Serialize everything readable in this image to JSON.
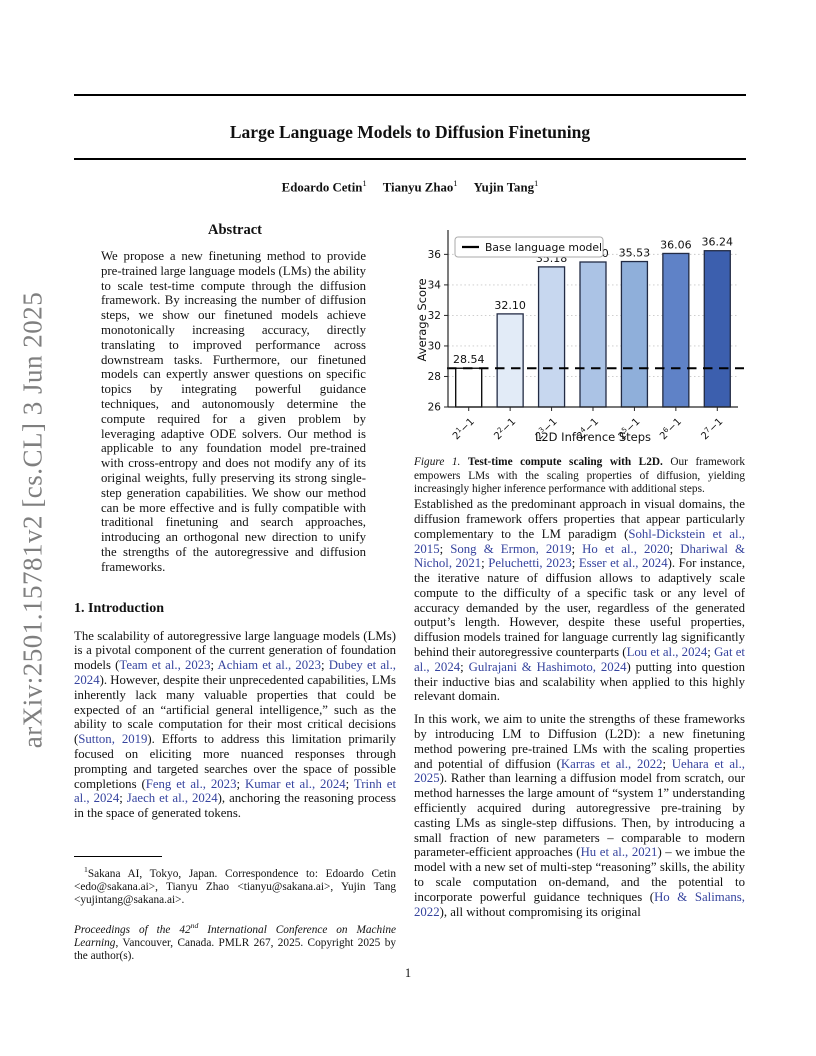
{
  "colors": {
    "citation": "#35439e",
    "watermark": "#7f7f7f",
    "accent_bar_dark": "#3c5fae"
  },
  "arxiv_watermark": "arXiv:2501.15781v2  [cs.CL]  3 Jun 2025",
  "header": {
    "title": "Large Language Models to Diffusion Finetuning"
  },
  "authors_line": {
    "segments": [
      {
        "t": "author",
        "s": "Edoardo Cetin"
      },
      {
        "t": "sup",
        "s": "1"
      },
      {
        "t": "gap"
      },
      {
        "t": "author",
        "s": "Tianyu Zhao"
      },
      {
        "t": "sup",
        "s": "1"
      },
      {
        "t": "gap"
      },
      {
        "t": "author",
        "s": "Yujin Tang"
      },
      {
        "t": "sup",
        "s": "1"
      }
    ]
  },
  "abstract": {
    "heading": "Abstract",
    "text": "We propose a new finetuning method to provide pre-trained large language models (LMs) the ability to scale test-time compute through the diffusion framework. By increasing the number of diffusion steps, we show our finetuned models achieve monotonically increasing accuracy, directly translating to improved performance across downstream tasks. Furthermore, our finetuned models can expertly answer questions on specific topics by integrating powerful guidance techniques, and autonomously determine the compute required for a given problem by leveraging adaptive ODE solvers. Our method is applicable to any foundation model pre-trained with cross-entropy and does not modify any of its original weights, fully preserving its strong single-step generation capabilities. We show our method can be more effective and is fully compatible with traditional finetuning and search approaches, introducing an orthogonal new direction to unify the strengths of the autoregressive and diffusion frameworks."
  },
  "sections": {
    "introduction": {
      "heading": "1. Introduction",
      "paragraphs": [
        {
          "segments": [
            {
              "t": "text",
              "s": "The scalability of autoregressive large language models (LMs) is a pivotal component of the current generation of foundation models ("
            },
            {
              "t": "cite",
              "s": "Team et al., 2023"
            },
            {
              "t": "text",
              "s": "; "
            },
            {
              "t": "cite",
              "s": "Achiam et al., 2023"
            },
            {
              "t": "text",
              "s": "; "
            },
            {
              "t": "cite",
              "s": "Dubey et al., 2024"
            },
            {
              "t": "text",
              "s": "). However, despite their unprecedented capabilities, LMs inherently lack many valuable properties that could be expected of an “artificial general intelligence,” such as the ability to scale computation for their most critical decisions ("
            },
            {
              "t": "cite",
              "s": "Sutton, 2019"
            },
            {
              "t": "text",
              "s": "). Efforts to address this limitation primarily focused on eliciting more nuanced responses through prompting and targeted searches over the space of possible completions ("
            },
            {
              "t": "cite",
              "s": "Feng et al., 2023"
            },
            {
              "t": "text",
              "s": "; "
            },
            {
              "t": "cite",
              "s": "Kumar et al., 2024"
            },
            {
              "t": "text",
              "s": "; "
            },
            {
              "t": "cite",
              "s": "Trinh et al., 2024"
            },
            {
              "t": "text",
              "s": "; "
            },
            {
              "t": "cite",
              "s": "Jaech et al., 2024"
            },
            {
              "t": "text",
              "s": "), anchoring the reasoning process in the space of generated tokens."
            }
          ]
        }
      ]
    }
  },
  "figure": {
    "caption": {
      "segments": [
        {
          "t": "i",
          "s": "Figure 1."
        },
        {
          "t": "text",
          "s": " "
        },
        {
          "t": "b",
          "s": "Test-time compute scaling with L2D."
        },
        {
          "t": "text",
          "s": " Our framework empowers LMs with the scaling properties of diffusion, yielding increasingly higher inference performance with additional steps."
        }
      ]
    }
  },
  "chart_data": {
    "type": "bar",
    "title": "",
    "xlabel": "L2D Inference Steps",
    "ylabel": "Average Score",
    "categories_text": [
      "2¹−1",
      "2²−1",
      "2³−1",
      "2⁴−1",
      "2⁵−1",
      "2⁶−1",
      "2⁷−1"
    ],
    "category_base": "2",
    "category_exponents": [
      "1",
      "2",
      "3",
      "4",
      "5",
      "6",
      "7"
    ],
    "category_suffix": "−1",
    "values": [
      28.54,
      32.1,
      35.18,
      35.5,
      35.53,
      36.06,
      36.24
    ],
    "bar_labels": [
      "28.54",
      "32.10",
      "35.18",
      "35.50",
      "35.53",
      "36.06",
      "36.24"
    ],
    "ylim": [
      26,
      37.4
    ],
    "yticks": [
      26,
      28,
      30,
      32,
      34,
      36
    ],
    "grid": true,
    "baseline_value": 28.54,
    "baseline_color": "#000000",
    "legend": {
      "label": "Base language model",
      "position": "upper-left"
    },
    "bar_fill_colors": [
      "#ffffff",
      "#e2ebf7",
      "#c7d7ef",
      "#abc3e5",
      "#8fafda",
      "#5f82c7",
      "#3c5fae"
    ],
    "bar_edge_colors": [
      "#000000",
      "#222b44",
      "#222b44",
      "#222b44",
      "#222b44",
      "#222b44",
      "#222b44"
    ]
  },
  "right_column": {
    "paragraphs": [
      {
        "segments": [
          {
            "t": "text",
            "s": "Established as the predominant approach in visual domains, the diffusion framework offers properties that appear particularly complementary to the LM paradigm ("
          },
          {
            "t": "cite",
            "s": "Sohl-Dickstein et al., 2015"
          },
          {
            "t": "text",
            "s": "; "
          },
          {
            "t": "cite",
            "s": "Song & Ermon, 2019"
          },
          {
            "t": "text",
            "s": "; "
          },
          {
            "t": "cite",
            "s": "Ho et al., 2020"
          },
          {
            "t": "text",
            "s": "; "
          },
          {
            "t": "cite",
            "s": "Dhariwal & Nichol, 2021"
          },
          {
            "t": "text",
            "s": "; "
          },
          {
            "t": "cite",
            "s": "Peluchetti, 2023"
          },
          {
            "t": "text",
            "s": "; "
          },
          {
            "t": "cite",
            "s": "Esser et al., 2024"
          },
          {
            "t": "text",
            "s": "). For instance, the iterative nature of diffusion allows to adaptively scale compute to the difficulty of a specific task or any level of accuracy demanded by the user, regardless of the generated output’s length. However, despite these useful properties, diffusion models trained for language currently lag significantly behind their autoregressive counterparts ("
          },
          {
            "t": "cite",
            "s": "Lou et al., 2024"
          },
          {
            "t": "text",
            "s": "; "
          },
          {
            "t": "cite",
            "s": "Gat et al., 2024"
          },
          {
            "t": "text",
            "s": "; "
          },
          {
            "t": "cite",
            "s": "Gulrajani & Hashimoto, 2024"
          },
          {
            "t": "text",
            "s": ") putting into question their inductive bias and scalability when applied to this highly relevant domain."
          }
        ]
      },
      {
        "segments": [
          {
            "t": "text",
            "s": "In this work, we aim to unite the strengths of these frameworks by introducing LM to Diffusion (L2D): a new finetuning method powering pre-trained LMs with the scaling properties and potential of diffusion ("
          },
          {
            "t": "cite",
            "s": "Karras et al., 2022"
          },
          {
            "t": "text",
            "s": "; "
          },
          {
            "t": "cite",
            "s": "Uehara et al., 2025"
          },
          {
            "t": "text",
            "s": "). Rather than learning a diffusion model from scratch, our method harnesses the large amount of “system 1” understanding efficiently acquired during autoregressive pre-training by casting LMs as single-step diffusions. Then, by introducing a small fraction of new parameters – comparable to modern parameter-efficient approaches ("
          },
          {
            "t": "cite",
            "s": "Hu et al., 2021"
          },
          {
            "t": "text",
            "s": ") – we imbue the model with a new set of multi-step “reasoning” skills, the ability to scale computation on-demand, and the potential to incorporate powerful guidance techniques ("
          },
          {
            "t": "cite",
            "s": "Ho & Salimans, 2022"
          },
          {
            "t": "text",
            "s": "), all without compromising its original"
          }
        ]
      }
    ]
  },
  "footnote": {
    "affiliation": {
      "segments": [
        {
          "t": "sup",
          "s": "1"
        },
        {
          "t": "text",
          "s": "Sakana AI, Tokyo, Japan. Correspondence to: Edoardo Cetin <edo@sakana.ai>, Tianyu Zhao <tianyu@sakana.ai>, Yujin Tang <yujintang@sakana.ai>."
        }
      ]
    },
    "proceedings": {
      "segments": [
        {
          "t": "i",
          "s": "Proceedings of the 42"
        },
        {
          "t": "isup",
          "s": "nd"
        },
        {
          "t": "i",
          "s": " International Conference on Machine Learning"
        },
        {
          "t": "text",
          "s": ", Vancouver, Canada. PMLR 267, 2025. Copyright 2025 by the author(s)."
        }
      ]
    }
  },
  "page_number": "1"
}
